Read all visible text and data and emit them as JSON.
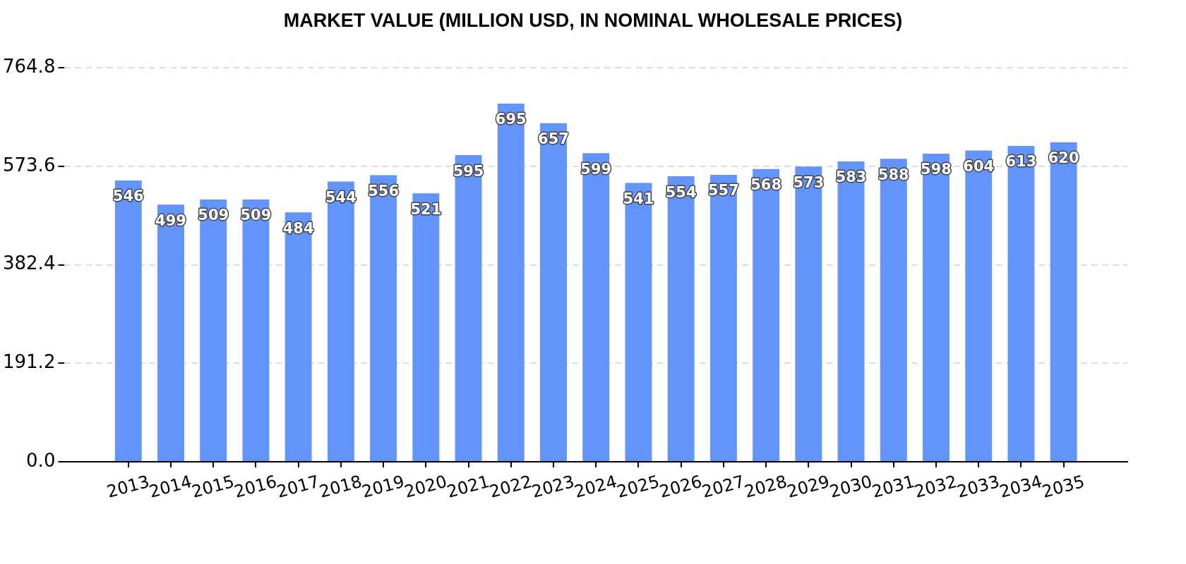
{
  "chart_data": {
    "type": "bar",
    "title": "MARKET VALUE (MILLION USD, IN NOMINAL WHOLESALE PRICES)",
    "categories": [
      "2013",
      "2014",
      "2015",
      "2016",
      "2017",
      "2018",
      "2019",
      "2020",
      "2021",
      "2022",
      "2023",
      "2024",
      "2025",
      "2026",
      "2027",
      "2028",
      "2029",
      "2030",
      "2031",
      "2032",
      "2033",
      "2034",
      "2035"
    ],
    "values": [
      546,
      499,
      509,
      509,
      484,
      544,
      556,
      521,
      595,
      695,
      657,
      599,
      541,
      554,
      557,
      568,
      573,
      583,
      588,
      598,
      604,
      613,
      620
    ],
    "color": "#6394fc",
    "ylim": [
      0,
      764.8
    ],
    "yticks": [
      {
        "value": 0,
        "label": "0.0"
      },
      191.2,
      382.4,
      573.6,
      764.8
    ],
    "grid": "y",
    "data_labels": true
  }
}
